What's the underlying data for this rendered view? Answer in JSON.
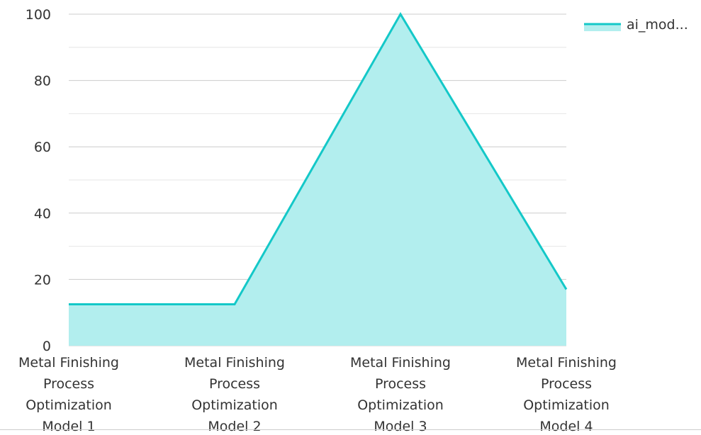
{
  "chart_data": {
    "type": "area",
    "title": "",
    "xlabel": "",
    "ylabel": "",
    "categories": [
      "Metal Finishing Process Optimization Model 1",
      "Metal Finishing Process Optimization Model 2",
      "Metal Finishing Process Optimization Model 3",
      "Metal Finishing Process Optimization Model 4"
    ],
    "category_lines": [
      [
        "Metal Finishing",
        "Process",
        "Optimization",
        "Model 1"
      ],
      [
        "Metal Finishing",
        "Process",
        "Optimization",
        "Model 2"
      ],
      [
        "Metal Finishing",
        "Process",
        "Optimization",
        "Model 3"
      ],
      [
        "Metal Finishing",
        "Process",
        "Optimization",
        "Model 4"
      ]
    ],
    "series": [
      {
        "name": "ai_mod...",
        "values": [
          12.5,
          12.5,
          100,
          17
        ],
        "color": "#14c8c8",
        "fill": "#b2eeee"
      }
    ],
    "ylim": [
      0,
      100
    ],
    "yticks": [
      "0",
      "20",
      "40",
      "60",
      "80",
      "100"
    ],
    "grid": true,
    "legend": "top-right"
  }
}
